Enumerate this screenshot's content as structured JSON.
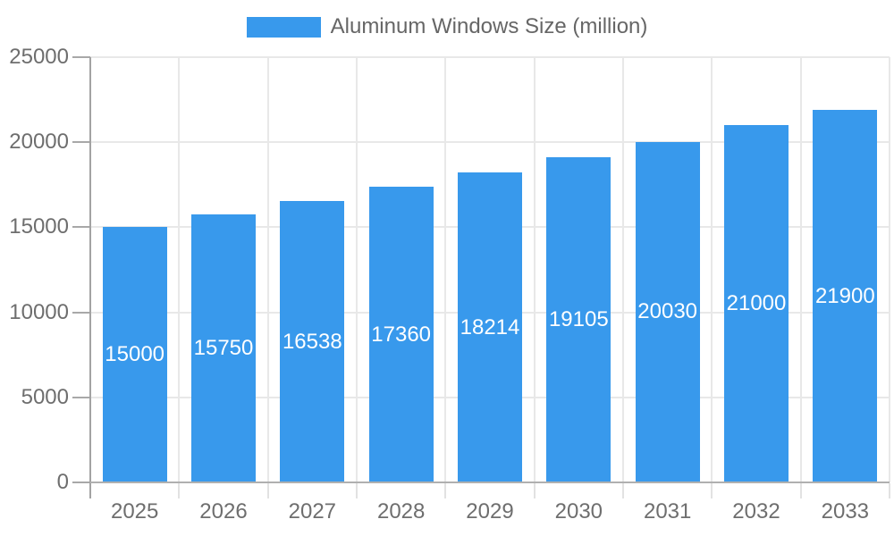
{
  "legend": {
    "label": "Aluminum Windows Size (million)"
  },
  "chart_data": {
    "type": "bar",
    "title": "Aluminum Windows Size (million)",
    "categories": [
      "2025",
      "2026",
      "2027",
      "2028",
      "2029",
      "2030",
      "2031",
      "2032",
      "2033"
    ],
    "values": [
      15000,
      15750,
      16538,
      17360,
      18214,
      19105,
      20030,
      21000,
      21900
    ],
    "bar_value_labels": [
      "15000",
      "15750",
      "16538",
      "17360",
      "18214",
      "19105",
      "20030",
      "21000",
      "21900"
    ],
    "series": [
      {
        "name": "Aluminum Windows Size (million)",
        "values": [
          15000,
          15750,
          16538,
          17360,
          18214,
          19105,
          20030,
          21000,
          21900
        ]
      }
    ],
    "xlabel": "",
    "ylabel": "",
    "ylim": [
      0,
      25000
    ],
    "yticks": [
      0,
      5000,
      10000,
      15000,
      20000,
      25000
    ],
    "ytick_labels": [
      "0",
      "5000",
      "10000",
      "15000",
      "20000",
      "25000"
    ],
    "grid": true,
    "legend_position": "top",
    "colors": {
      "bar": "#3899EC",
      "grid": "#E8E8E8",
      "axis_y": "#A3A3A3",
      "axis_x": "#B0B0B0",
      "tick_mark_y": "#A8A8A8",
      "tick_mark_x": "#E2E2E2",
      "tick_label": "#6E6E6E",
      "value_label": "#FFFFFF",
      "legend_text": "#666666",
      "background": "#FFFFFF"
    }
  }
}
